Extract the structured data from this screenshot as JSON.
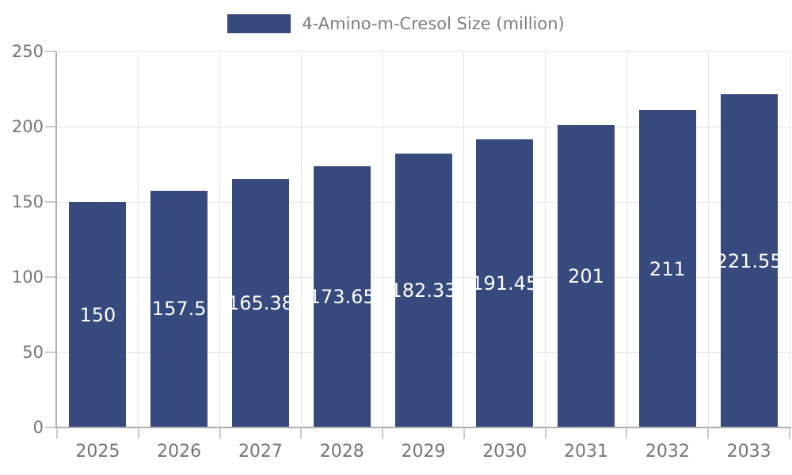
{
  "legend": {
    "label": "4-Amino-m-Cresol Size (million)"
  },
  "colors": {
    "bar": "#374A7E",
    "grid": "#e4e4e4",
    "axis": "#adadad",
    "tick": "#c9c9c9",
    "axis_label": "#757575",
    "legend_label": "#7d7d7d",
    "bar_label": "#ffffff"
  },
  "chart_data": {
    "type": "bar",
    "title": "4-Amino-m-Cresol Size (million)",
    "categories": [
      "2025",
      "2026",
      "2027",
      "2028",
      "2029",
      "2030",
      "2031",
      "2032",
      "2033"
    ],
    "values": [
      150,
      157.5,
      165.38,
      173.65,
      182.33,
      191.45,
      201,
      211,
      221.55
    ],
    "value_labels": [
      "150",
      "157.5",
      "165.38",
      "173.65",
      "182.33",
      "191.45",
      "201",
      "211",
      "221.55"
    ],
    "series_name": "4-Amino-m-Cresol Size (million)",
    "xlabel": "",
    "ylabel": "",
    "ylim": [
      0,
      250
    ],
    "y_ticks": [
      0,
      50,
      100,
      150,
      200,
      250
    ],
    "grid": true,
    "legend_position": "top",
    "value_label_position": "inside-center"
  }
}
